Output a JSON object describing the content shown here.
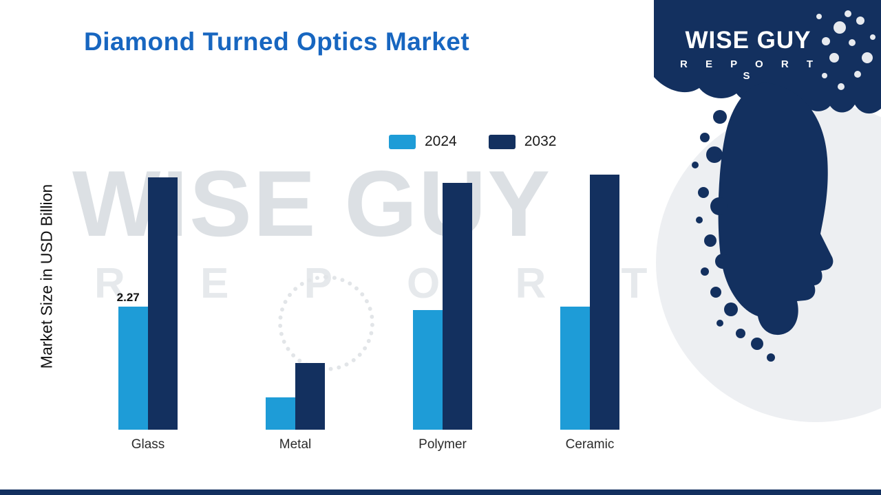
{
  "page": {
    "title": "Diamond Turned Optics Market"
  },
  "logo": {
    "line1": "WISE GUY",
    "line2": "R E P O R T S"
  },
  "watermark": {
    "line1": "WISE GUY",
    "line2": "R E P O R T S"
  },
  "colors": {
    "accent_blue": "#1766C0",
    "bar_2024": "#1E9CD7",
    "bar_2032": "#13305F",
    "watermark_gray": "#DCE0E4",
    "background_circle_gray": "#EDEFF2",
    "footer_navy": "#13305F"
  },
  "chart_data": {
    "type": "bar",
    "title": "Diamond Turned Optics Market",
    "xlabel": "",
    "ylabel": "Market Size in USD Billion",
    "categories": [
      "Glass",
      "Metal",
      "Polymer",
      "Ceramic"
    ],
    "series": [
      {
        "name": "2024",
        "color": "#1E9CD7",
        "values": [
          2.27,
          0.6,
          2.2,
          2.26
        ]
      },
      {
        "name": "2032",
        "color": "#13305F",
        "values": [
          4.65,
          1.23,
          4.55,
          4.7
        ]
      }
    ],
    "annotations": [
      {
        "series": "2024",
        "category": "Glass",
        "text": "2.27"
      }
    ],
    "ylim": [
      0,
      5
    ],
    "grid": false,
    "legend_position": "top"
  }
}
